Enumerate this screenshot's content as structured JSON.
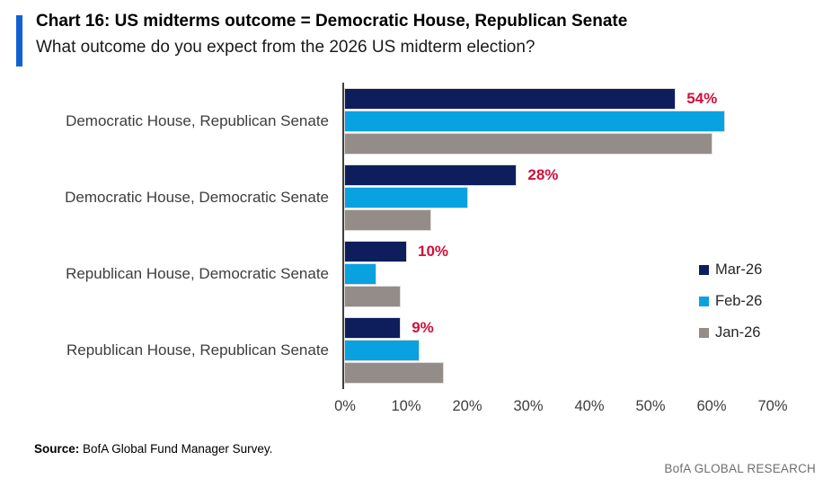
{
  "header": {
    "title": "Chart 16: US midterms outcome = Democratic House, Republican Senate",
    "subtitle": "What outcome do you expect from the 2026 US midterm election?",
    "accent_color": "#1261d3"
  },
  "chart_data": {
    "type": "bar",
    "orientation": "horizontal",
    "title": "Chart 16: US midterms outcome = Democratic House, Republican Senate",
    "subtitle": "What outcome do you expect from the 2026 US midterm election?",
    "categories": [
      "Democratic House, Republican Senate",
      "Democratic House, Democratic Senate",
      "Republican House, Democratic Senate",
      "Republican House, Republican Senate"
    ],
    "series": [
      {
        "name": "Mar-26",
        "color": "#0e1e5c",
        "values": [
          54,
          28,
          10,
          9
        ]
      },
      {
        "name": "Feb-26",
        "color": "#09a2e1",
        "values": [
          62,
          20,
          5,
          12
        ]
      },
      {
        "name": "Jan-26",
        "color": "#948c89",
        "values": [
          60,
          14,
          9,
          16
        ]
      }
    ],
    "data_labels": {
      "series": "Mar-26",
      "values": [
        "54%",
        "28%",
        "10%",
        "9%"
      ],
      "color": "#d0103a"
    },
    "x_ticks": [
      "0%",
      "10%",
      "20%",
      "30%",
      "40%",
      "50%",
      "60%",
      "70%"
    ],
    "xlim": [
      0,
      70
    ],
    "xlabel": "",
    "ylabel": "",
    "grid": false,
    "legend_position": "right"
  },
  "footer": {
    "source_label": "Source:",
    "source_text": " BofA Global Fund Manager Survey.",
    "branding": "BofA GLOBAL RESEARCH"
  }
}
